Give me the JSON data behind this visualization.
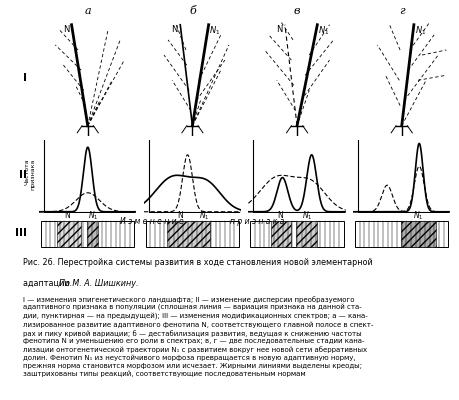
{
  "col_labels": [
    "а",
    "б",
    "в",
    "г"
  ],
  "row_labels": [
    "I",
    "II",
    "III"
  ],
  "ylabel_II": "Частота\nпризнака",
  "xlabel_II_1": "И з м е н е н и е",
  "xlabel_II_2": "п р и з н а к а",
  "caption_title": "Рис. 26. Перестройка системы развития в ходе становления новой элементарной",
  "caption_title2": "адаптации. ",
  "caption_title_italic": "По М. А. Шишкину.",
  "caption_body": "I — изменения эпигенетического ландшафта; II — изменение дисперсии преобразуемого\nадаптивного признака в популяции (сплошная линия — вариация признака на данной ста-\nдии, пунктирная — на предыдущей); III — изменения модификационных спектров; а — кана-\nлизированное развитие адаптивного фенотипа N, соответствующего главной полосе в спект-\nрах и пику кривой вариации; б — дестабилизация развития, ведущая к снижению частоты\nфенотипа N и уменьшению его роли в спектрах; в, г — две последовательные стадии кана-\nлизации онтогенетической траектории N₁ с развитием вокруг нее новой сети аберративных\nдолин. Фенотип N₁ из неустойчивого морфоза превращается в новую адаптивную норму,\nпрежняя норма становится морфозом или исчезает. Жирными линиями выделены креоды;\nзаштрихованы типы реакций, соответствующие последоватеньным нормам",
  "bg_color": "#ffffff"
}
